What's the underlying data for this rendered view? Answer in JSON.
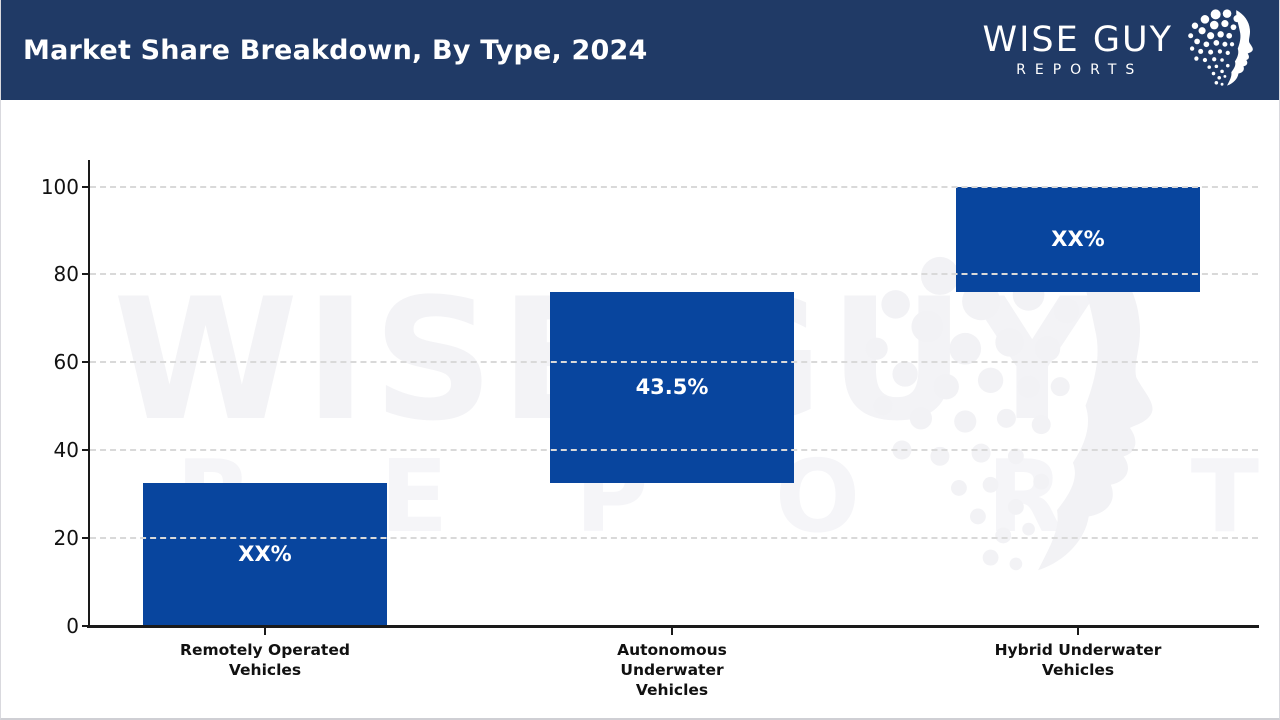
{
  "header": {
    "title": "Market Share Breakdown, By Type, 2024",
    "logo": {
      "name": "WISE GUY",
      "sub": "REPORTS"
    }
  },
  "watermark": {
    "name": "WISE GUY",
    "sub": "R E P O R T S"
  },
  "colors": {
    "header_bg": "#203a66",
    "bar": "#08459e",
    "bar_label": "#ffffff",
    "grid": "#d9d9d9",
    "axis": "#1a1a1a",
    "tick_label": "#111111",
    "watermark": "#f3f3f6"
  },
  "chart_data": {
    "type": "bar",
    "subtype": "floating-segment waterfall",
    "title": "Market Share Breakdown, By Type, 2024",
    "categories": [
      "Remotely Operated Vehicles",
      "Autonomous Underwater Vehicles",
      "Hybrid Underwater Vehicles"
    ],
    "category_label_lines": [
      [
        "Remotely Operated",
        "Vehicles"
      ],
      [
        "Autonomous",
        "Underwater",
        "Vehicles"
      ],
      [
        "Hybrid Underwater",
        "Vehicles"
      ]
    ],
    "series": [
      {
        "category": "Remotely Operated Vehicles",
        "base": 0,
        "top": 32.5,
        "label": "XX%",
        "span_estimate": 32.5
      },
      {
        "category": "Autonomous Underwater Vehicles",
        "base": 32.5,
        "top": 76,
        "label": "43.5%",
        "span_estimate": 43.5
      },
      {
        "category": "Hybrid Underwater Vehicles",
        "base": 76,
        "top": 100,
        "label": "XX%",
        "span_estimate": 24
      }
    ],
    "ylim": [
      0,
      100
    ],
    "yticks": [
      0,
      20,
      40,
      60,
      80,
      100
    ],
    "xlabel": "",
    "ylabel": "",
    "grid": {
      "axis": "y",
      "style": "dashed"
    },
    "legend": null
  }
}
